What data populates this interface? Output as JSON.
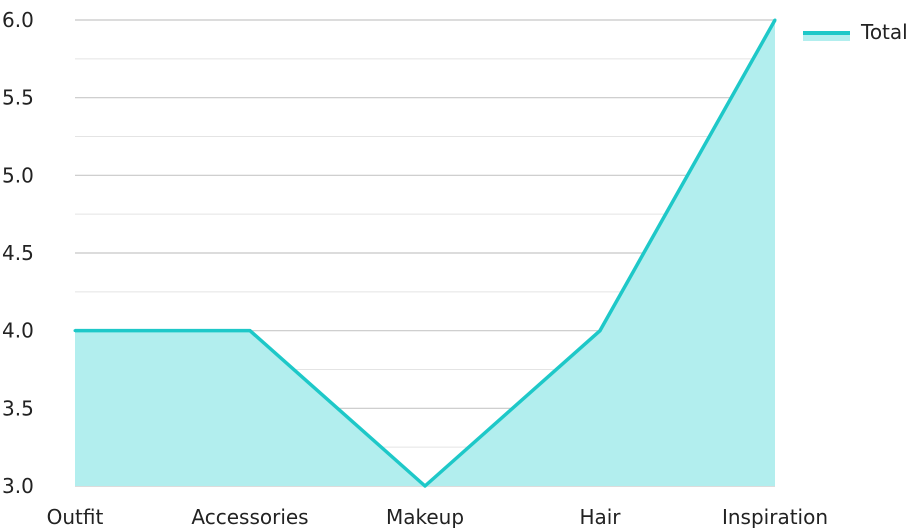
{
  "chart_data": {
    "type": "area",
    "categories": [
      "Outfit",
      "Accessories",
      "Makeup",
      "Hair",
      "Inspiration"
    ],
    "series": [
      {
        "name": "Total",
        "values": [
          4.0,
          4.0,
          3.0,
          4.0,
          6.0
        ]
      }
    ],
    "ylim": [
      3.0,
      6.0
    ],
    "yticks": [
      "3.0",
      "3.5",
      "4.0",
      "4.5",
      "5.0",
      "5.5",
      "6.0"
    ],
    "minor_grid": true,
    "legend": "top-right",
    "colors": {
      "line": "#1ec8c8",
      "fill": "#b2eeee",
      "grid": "#c8c8c8"
    }
  }
}
